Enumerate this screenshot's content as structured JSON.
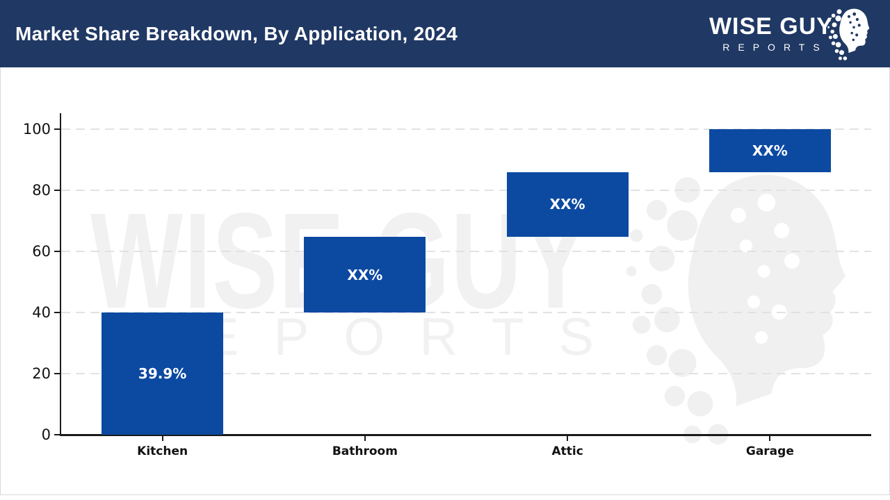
{
  "header": {
    "title": "Market Share Breakdown, By Application, 2024",
    "logo": {
      "word": "WISE GUY",
      "sub": "REPORTS"
    }
  },
  "watermark": {
    "word": "WISE GUY",
    "sub": "REPORTS"
  },
  "colors": {
    "header_bg": "#203864",
    "bar_blue": "#0c4aa2",
    "grid_line": "#e2e2e2",
    "axis": "#1a1a1a",
    "frame_border": "#d9d9d9",
    "watermark_gray": "#f1f1f1"
  },
  "chart_data": {
    "type": "bar",
    "subtype": "waterfall-floating-bars",
    "title": "Market Share Breakdown, By Application, 2024",
    "categories": [
      "Kitchen",
      "Bathroom",
      "Attic",
      "Garage"
    ],
    "segments": [
      {
        "category": "Kitchen",
        "start": 0,
        "end": 39.9,
        "label": "39.9%"
      },
      {
        "category": "Bathroom",
        "start": 39.9,
        "end": 64.8,
        "label": "XX%"
      },
      {
        "category": "Attic",
        "start": 64.8,
        "end": 85.9,
        "label": "XX%"
      },
      {
        "category": "Garage",
        "start": 85.9,
        "end": 100,
        "label": "XX%"
      }
    ],
    "xlabel": "",
    "ylabel": "",
    "yticks": [
      0,
      20,
      40,
      60,
      80,
      100
    ],
    "ylim": [
      0,
      105
    ],
    "grid": "horizontal-dashed",
    "legend": "none",
    "bar_color": "#0c4aa2",
    "bar_label_color": "#ffffff"
  }
}
